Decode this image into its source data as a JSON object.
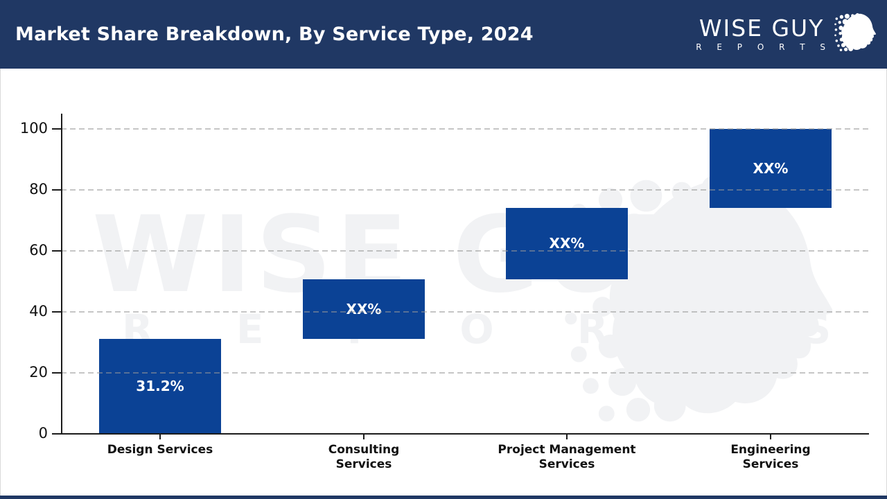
{
  "header": {
    "title": "Market Share Breakdown, By Service Type, 2024",
    "logo": {
      "line1": "WISE GUY",
      "line2": "R E P O R T S"
    }
  },
  "watermark": {
    "line1": "WISE GUY",
    "line2": "R E P O R T S"
  },
  "colors": {
    "header_bg": "#203864",
    "bar": "#0b4295",
    "bar_label": "#ffffff",
    "axis": "#1c1c1c",
    "watermark": "#f1f2f4",
    "footer_strip": "#203864"
  },
  "chart_data": {
    "type": "bar",
    "subtype": "waterfall-floating-bars",
    "title": "Market Share Breakdown, By Service Type, 2024",
    "categories": [
      "Design Services",
      "Consulting Services",
      "Project Management Services",
      "Engineering Services"
    ],
    "category_label_lines": [
      [
        "Design Services"
      ],
      [
        "Consulting",
        "Services"
      ],
      [
        "Project Management",
        "Services"
      ],
      [
        "Engineering",
        "Services"
      ]
    ],
    "segments": [
      {
        "start": 0,
        "end": 31.2,
        "label": "31.2%"
      },
      {
        "start": 31.2,
        "end": 50.7,
        "label": "XX%"
      },
      {
        "start": 50.7,
        "end": 74.1,
        "label": "XX%"
      },
      {
        "start": 74.1,
        "end": 100,
        "label": "XX%"
      }
    ],
    "xlabel": "",
    "ylabel": "",
    "ylim": [
      0,
      100
    ],
    "yticks": [
      0,
      20,
      40,
      60,
      80,
      100
    ],
    "grid": "dashed horizontal",
    "legend": "none"
  }
}
